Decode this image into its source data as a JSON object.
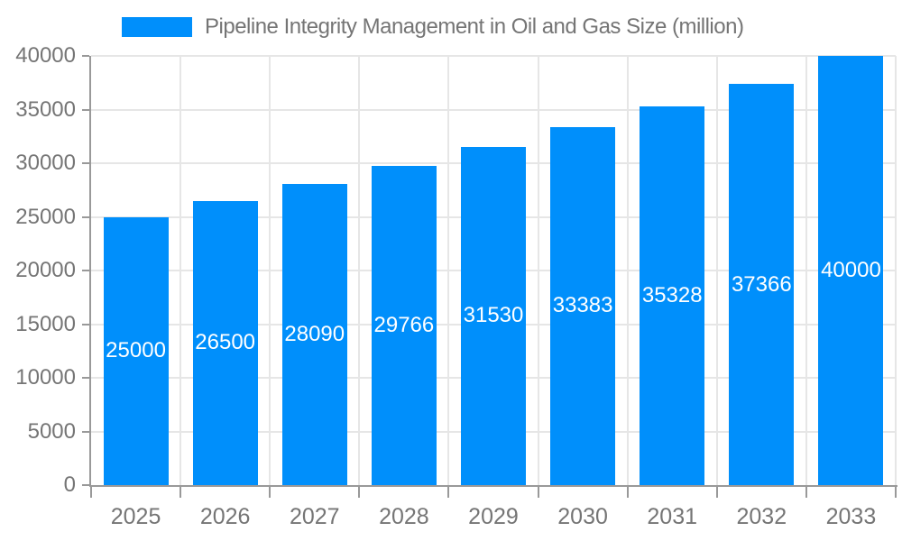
{
  "chart_data": {
    "type": "bar",
    "title": "Pipeline Integrity Management in Oil and Gas Size (million)",
    "categories": [
      "2025",
      "2026",
      "2027",
      "2028",
      "2029",
      "2030",
      "2031",
      "2032",
      "2033"
    ],
    "values": [
      25000,
      26500,
      28090,
      29766,
      31530,
      33383,
      35328,
      37366,
      40000
    ],
    "bar_value_labels": [
      "25000",
      "26500",
      "28090",
      "29766",
      "31530",
      "33383",
      "35328",
      "37366",
      "40000"
    ],
    "y_ticks": [
      0,
      5000,
      10000,
      15000,
      20000,
      25000,
      30000,
      35000,
      40000
    ],
    "ylim": [
      0,
      40000
    ],
    "xlabel": "",
    "ylabel": "",
    "grid": true,
    "legend_position": "top",
    "colors": {
      "bar": "#008ffb",
      "grid": "#e6e6e6",
      "axis": "#999999",
      "tick_label": "#757575",
      "bar_label": "#ffffff",
      "background": "#ffffff"
    }
  }
}
